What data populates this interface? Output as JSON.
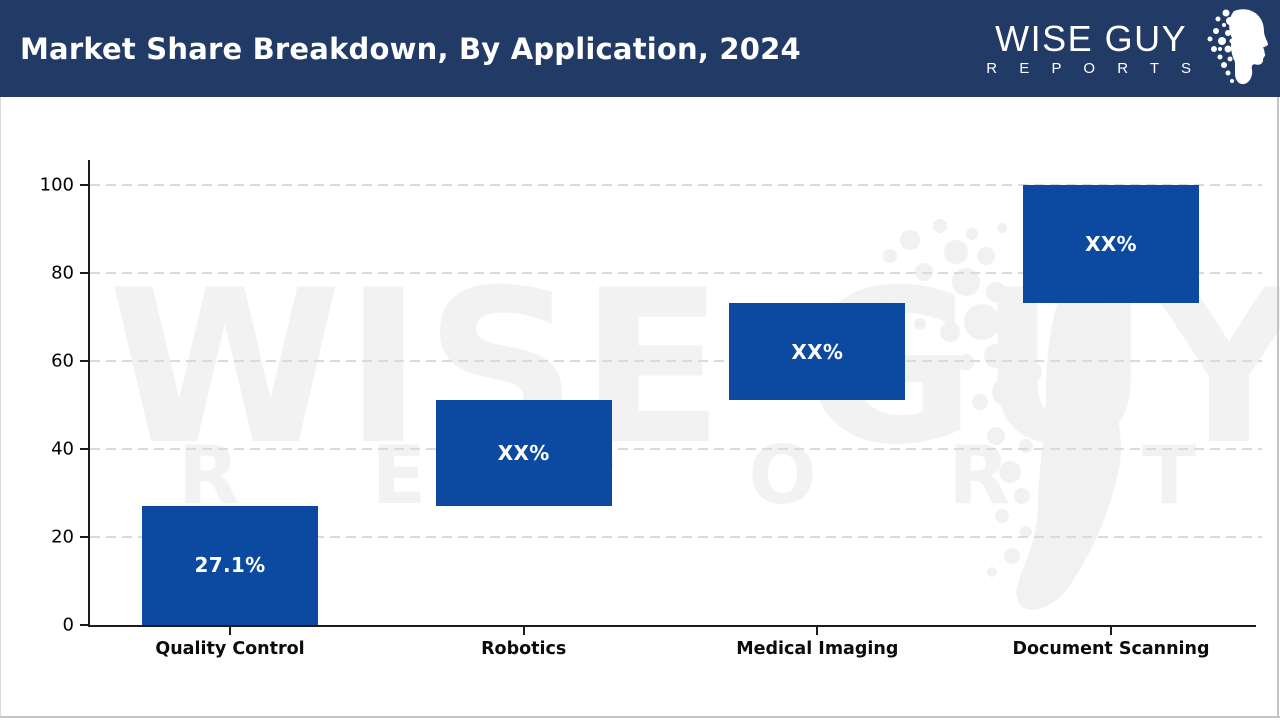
{
  "header": {
    "title": "Market Share Breakdown, By Application, 2024",
    "logo": {
      "line1": "WISE GUY",
      "line2": "R E P O R T S",
      "icon": "dot-face-head-icon"
    }
  },
  "watermark": {
    "line1": "WISE GUY",
    "line2": "R E P O R T S"
  },
  "colors": {
    "header_bg": "#213A66",
    "bar": "#0C4AA2",
    "gridline": "#DBDBDB",
    "axis": "#1C1C1C",
    "watermark": "#F2F2F2",
    "bar_label_text": "#FFFFFF"
  },
  "chart_data": {
    "type": "bar",
    "subtype": "waterfall-steps",
    "title": "Market Share Breakdown, By Application, 2024",
    "categories": [
      "Quality Control",
      "Robotics",
      "Medical Imaging",
      "Document Scanning"
    ],
    "segments": [
      {
        "category": "Quality Control",
        "start": 0,
        "end": 27.1,
        "label": "27.1%"
      },
      {
        "category": "Robotics",
        "start": 27.1,
        "end": 51,
        "label": "XX%"
      },
      {
        "category": "Medical Imaging",
        "start": 51,
        "end": 73,
        "label": "XX%"
      },
      {
        "category": "Document Scanning",
        "start": 73,
        "end": 100,
        "label": "XX%"
      }
    ],
    "xlabel": "",
    "ylabel": "",
    "ylim": [
      0,
      100
    ],
    "yticks": [
      0,
      20,
      40,
      60,
      80,
      100
    ],
    "grid": "horizontal-dashed",
    "legend": "none",
    "bar_color": "#0C4AA2"
  }
}
